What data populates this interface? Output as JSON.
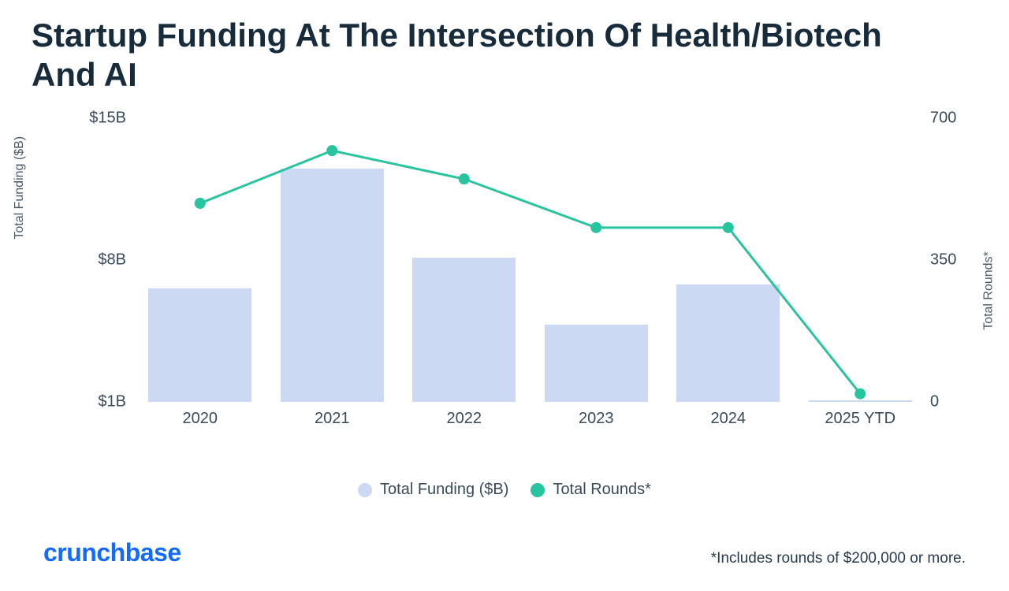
{
  "title": "Startup Funding At The Intersection Of Health/Biotech And AI",
  "chart": {
    "type": "bar+line",
    "categories": [
      "2020",
      "2021",
      "2022",
      "2023",
      "2024",
      "2025 YTD"
    ],
    "bars": {
      "label": "Total Funding ($B)",
      "values": [
        6.6,
        12.5,
        8.1,
        4.8,
        6.8,
        0.9
      ],
      "color": "#ccd9f2",
      "bar_width": 0.78
    },
    "line": {
      "label": "Total Rounds*",
      "values": [
        490,
        620,
        550,
        430,
        430,
        20
      ],
      "color": "#27c49f",
      "marker_fill": "#27c49f",
      "marker_radius": 7,
      "line_width": 3
    },
    "y_left": {
      "label": "Total Funding ($B)",
      "min": 1,
      "max": 15,
      "ticks": [
        1,
        8,
        15
      ],
      "tick_labels": [
        "$1B",
        "$8B",
        "$15B"
      ]
    },
    "y_right": {
      "label": "Total Rounds*",
      "min": 0,
      "max": 700,
      "ticks": [
        0,
        350,
        700
      ],
      "tick_labels": [
        "0",
        "350",
        "700"
      ]
    },
    "background_color": "#ffffff",
    "title_fontsize": 42,
    "tick_fontsize": 20,
    "axis_label_fontsize": 16
  },
  "legend": {
    "items": [
      {
        "swatch_color": "#ccd9f2",
        "label": "Total Funding ($B)"
      },
      {
        "swatch_color": "#27c49f",
        "label": "Total Rounds*"
      }
    ]
  },
  "brand": {
    "text": "crunchbase",
    "color": "#146aff"
  },
  "footnote": "*Includes rounds of $200,000 or more."
}
